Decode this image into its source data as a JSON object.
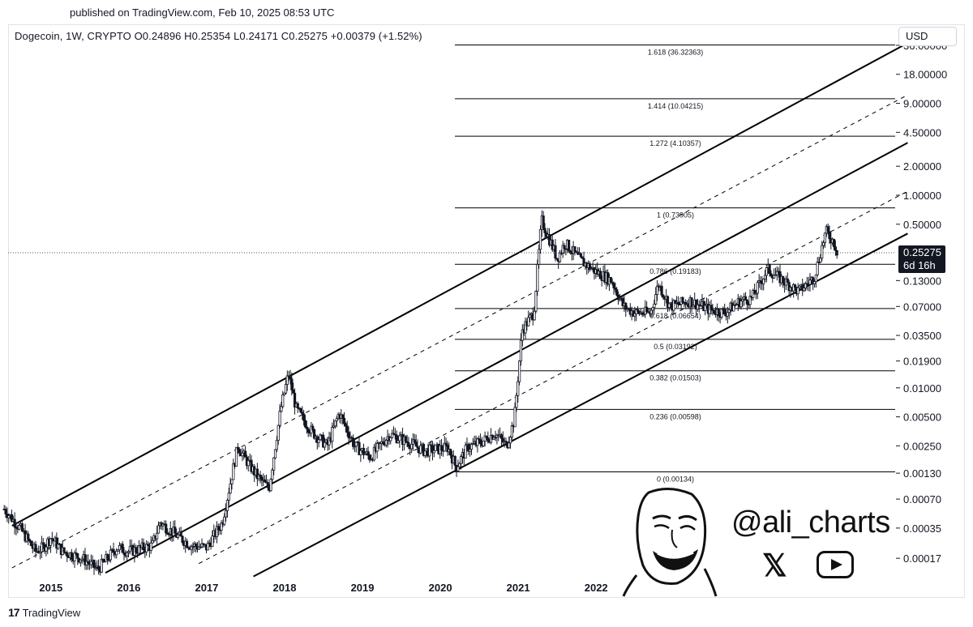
{
  "header": {
    "published": "published on TradingView.com, Feb 10, 2025 08:53 UTC",
    "symbol_info": "Dogecoin, 1W, CRYPTO  O0.24896  H0.25354  L0.24171  C0.25275  +0.00379 (+1.52%)"
  },
  "currency": "USD",
  "footer": {
    "logo": "17",
    "brand": "TradingView"
  },
  "watermark": {
    "handle": "@ali_charts",
    "x_icon": "𝕏",
    "youtube_icon": "youtube-icon",
    "avatar": "cartoon-face-icon"
  },
  "colors": {
    "candle": "#131722",
    "line": "#000000",
    "price_line": "#555555",
    "badge": "#131722"
  },
  "chart_data": {
    "type": "candlestick",
    "scale": "log",
    "title": "Dogecoin, 1W, CRYPTO",
    "ylim": [
      9e-05,
      42
    ],
    "x_ticks": [
      "2015",
      "2016",
      "2017",
      "2018",
      "2019",
      "2020",
      "2021",
      "2022"
    ],
    "y_ticks": [
      {
        "label": "36.00000",
        "value": 36
      },
      {
        "label": "18.00000",
        "value": 18
      },
      {
        "label": "9.00000",
        "value": 9
      },
      {
        "label": "4.50000",
        "value": 4.5
      },
      {
        "label": "2.00000",
        "value": 2
      },
      {
        "label": "1.00000",
        "value": 1
      },
      {
        "label": "0.50000",
        "value": 0.5
      },
      {
        "label": "0.13000",
        "value": 0.13
      },
      {
        "label": "0.07000",
        "value": 0.07
      },
      {
        "label": "0.03500",
        "value": 0.035
      },
      {
        "label": "0.01900",
        "value": 0.019
      },
      {
        "label": "0.01000",
        "value": 0.01
      },
      {
        "label": "0.00500",
        "value": 0.005
      },
      {
        "label": "0.00250",
        "value": 0.0025
      },
      {
        "label": "0.00130",
        "value": 0.0013
      },
      {
        "label": "0.00070",
        "value": 0.0007
      },
      {
        "label": "0.00035",
        "value": 0.00035
      },
      {
        "label": "0.00017",
        "value": 0.00017
      }
    ],
    "current_price": {
      "label": "0.25275",
      "value": 0.25275,
      "countdown": "6d 16h"
    },
    "fib_levels": [
      {
        "label": "1.618 (36.32363)",
        "value": 36.32363
      },
      {
        "label": "1.414 (10.04215)",
        "value": 10.04215
      },
      {
        "label": "1.272 (4.10357)",
        "value": 4.10357
      },
      {
        "label": "1 (0.73905)",
        "value": 0.73905
      },
      {
        "label": "0.786 (0.19183)",
        "value": 0.19183
      },
      {
        "label": "0.618 (0.06654)",
        "value": 0.06654
      },
      {
        "label": "0.5 (0.03192)",
        "value": 0.03192
      },
      {
        "label": "0.382 (0.01503)",
        "value": 0.01503
      },
      {
        "label": "0.236 (0.00598)",
        "value": 0.00598
      },
      {
        "label": "0 (0.00134)",
        "value": 0.00134
      }
    ],
    "price_path": [
      [
        2014.4,
        0.00055
      ],
      [
        2014.6,
        0.00035
      ],
      [
        2014.8,
        0.0002
      ],
      [
        2014.9,
        0.00022
      ],
      [
        2015.0,
        0.00028
      ],
      [
        2015.15,
        0.0002
      ],
      [
        2015.4,
        0.00017
      ],
      [
        2015.6,
        0.00013
      ],
      [
        2015.85,
        0.00022
      ],
      [
        2016.0,
        0.0002
      ],
      [
        2016.3,
        0.00023
      ],
      [
        2016.4,
        0.0004
      ],
      [
        2016.6,
        0.0003
      ],
      [
        2016.8,
        0.00023
      ],
      [
        2017.0,
        0.00022
      ],
      [
        2017.2,
        0.0004
      ],
      [
        2017.4,
        0.0025
      ],
      [
        2017.5,
        0.0018
      ],
      [
        2017.65,
        0.0012
      ],
      [
        2017.8,
        0.0009
      ],
      [
        2017.95,
        0.006
      ],
      [
        2018.05,
        0.014
      ],
      [
        2018.15,
        0.006
      ],
      [
        2018.35,
        0.0035
      ],
      [
        2018.55,
        0.0025
      ],
      [
        2018.7,
        0.0055
      ],
      [
        2018.9,
        0.0025
      ],
      [
        2019.1,
        0.0019
      ],
      [
        2019.35,
        0.0033
      ],
      [
        2019.6,
        0.0027
      ],
      [
        2019.8,
        0.0022
      ],
      [
        2020.1,
        0.0024
      ],
      [
        2020.2,
        0.0015
      ],
      [
        2020.35,
        0.0024
      ],
      [
        2020.55,
        0.0028
      ],
      [
        2020.7,
        0.0034
      ],
      [
        2020.85,
        0.0025
      ],
      [
        2020.95,
        0.0047
      ],
      [
        2021.05,
        0.04
      ],
      [
        2021.2,
        0.06
      ],
      [
        2021.3,
        0.55
      ],
      [
        2021.5,
        0.22
      ],
      [
        2021.6,
        0.32
      ],
      [
        2021.8,
        0.21
      ],
      [
        2022.0,
        0.16
      ],
      [
        2022.2,
        0.13
      ],
      [
        2022.35,
        0.07
      ],
      [
        2022.5,
        0.06
      ],
      [
        2022.7,
        0.06
      ],
      [
        2022.8,
        0.12
      ],
      [
        2022.95,
        0.07
      ],
      [
        2023.2,
        0.08
      ],
      [
        2023.45,
        0.065
      ],
      [
        2023.65,
        0.06
      ],
      [
        2023.85,
        0.08
      ],
      [
        2024.0,
        0.085
      ],
      [
        2024.2,
        0.17
      ],
      [
        2024.4,
        0.13
      ],
      [
        2024.6,
        0.1
      ],
      [
        2024.8,
        0.14
      ],
      [
        2024.95,
        0.42
      ],
      [
        2025.05,
        0.33
      ],
      [
        2025.1,
        0.25275
      ]
    ],
    "channel_lines": [
      {
        "name": "upper",
        "style": "solid",
        "from": [
          2014.5,
          0.00037
        ],
        "to": [
          2026.0,
          38
        ]
      },
      {
        "name": "upper-mid",
        "style": "dashed",
        "from": [
          2014.5,
          0.000135
        ],
        "to": [
          2026.0,
          11
        ]
      },
      {
        "name": "middle",
        "style": "solid",
        "from": [
          2015.7,
          0.00012
        ],
        "to": [
          2026.0,
          3.5
        ]
      },
      {
        "name": "lower-mid",
        "style": "dashed",
        "from": [
          2016.9,
          0.00015
        ],
        "to": [
          2026.0,
          1.1
        ]
      },
      {
        "name": "lower",
        "style": "solid",
        "from": [
          2017.6,
          0.00011
        ],
        "to": [
          2026.0,
          0.4
        ]
      }
    ]
  }
}
